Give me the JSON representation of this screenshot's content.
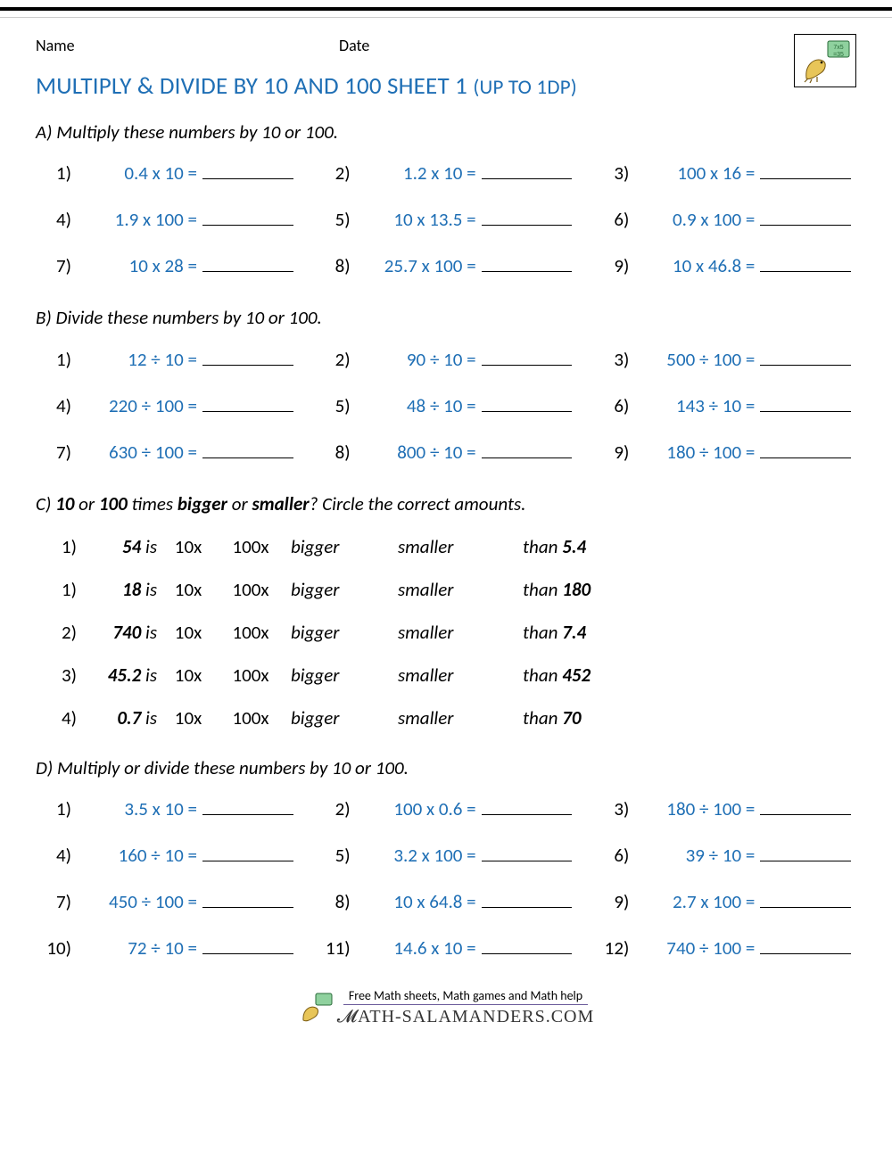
{
  "header": {
    "name_label": "Name",
    "date_label": "Date"
  },
  "title": {
    "main": "MULTIPLY & DIVIDE BY 10 AND 100 SHEET 1",
    "sub": "(UP TO 1DP)",
    "color": "#1F6FB5"
  },
  "sectionA": {
    "label_prefix": "A) ",
    "label_text": "Multiply these numbers by 10 or 100.",
    "items": [
      {
        "n": "1)",
        "expr": "0.4 x 10 ="
      },
      {
        "n": "2)",
        "expr": "1.2 x 10 ="
      },
      {
        "n": "3)",
        "expr": "100 x 16 ="
      },
      {
        "n": "4)",
        "expr": "1.9 x 100 ="
      },
      {
        "n": "5)",
        "expr": "10 x 13.5 ="
      },
      {
        "n": "6)",
        "expr": "0.9 x 100 ="
      },
      {
        "n": "7)",
        "expr": "10 x 28 ="
      },
      {
        "n": "8)",
        "expr": "25.7 x 100 ="
      },
      {
        "n": "9)",
        "expr": "10 x 46.8 ="
      }
    ]
  },
  "sectionB": {
    "label_prefix": "B) ",
    "label_text": "Divide these numbers by 10 or 100.",
    "items": [
      {
        "n": "1)",
        "expr": "12 ÷ 10 ="
      },
      {
        "n": "2)",
        "expr": "90 ÷ 10 ="
      },
      {
        "n": "3)",
        "expr": "500 ÷ 100 ="
      },
      {
        "n": "4)",
        "expr": "220 ÷ 100 ="
      },
      {
        "n": "5)",
        "expr": "48 ÷ 10 ="
      },
      {
        "n": "6)",
        "expr": "143 ÷ 10 ="
      },
      {
        "n": "7)",
        "expr": "630 ÷ 100 ="
      },
      {
        "n": "8)",
        "expr": "800 ÷ 10 ="
      },
      {
        "n": "9)",
        "expr": "180 ÷ 100 ="
      }
    ]
  },
  "sectionC": {
    "label_html_parts": [
      "C) ",
      "10",
      " or ",
      "100",
      " times ",
      "bigger",
      " or ",
      "smaller",
      "? Circle the correct amounts."
    ],
    "opt10": "10x",
    "opt100": "100x",
    "bigger": "bigger",
    "smaller": "smaller",
    "than": "than",
    "is": "is",
    "rows": [
      {
        "n": "1)",
        "a": "54",
        "b": "5.4"
      },
      {
        "n": "1)",
        "a": "18",
        "b": "180"
      },
      {
        "n": "2)",
        "a": "740",
        "b": "7.4"
      },
      {
        "n": "3)",
        "a": "45.2",
        "b": "452"
      },
      {
        "n": "4)",
        "a": "0.7",
        "b": "70"
      }
    ]
  },
  "sectionD": {
    "label_prefix": "D) ",
    "label_text": "Multiply or divide these numbers by 10 or 100.",
    "items": [
      {
        "n": "1)",
        "expr": "3.5 x 10 ="
      },
      {
        "n": "2)",
        "expr": "100 x 0.6 ="
      },
      {
        "n": "3)",
        "expr": "180 ÷ 100 ="
      },
      {
        "n": "4)",
        "expr": "160 ÷ 10 ="
      },
      {
        "n": "5)",
        "expr": "3.2 x 100 ="
      },
      {
        "n": "6)",
        "expr": "39 ÷ 10 ="
      },
      {
        "n": "7)",
        "expr": "450 ÷ 100 ="
      },
      {
        "n": "8)",
        "expr": "10 x 64.8 ="
      },
      {
        "n": "9)",
        "expr": "2.7 x 100 ="
      },
      {
        "n": "10)",
        "expr": "72 ÷ 10 ="
      },
      {
        "n": "11)",
        "expr": "14.6 x 10 ="
      },
      {
        "n": "12)",
        "expr": "740 ÷ 100 ="
      }
    ]
  },
  "footer": {
    "line1": "Free Math sheets, Math games and Math help",
    "site": "ATH-SALAMANDERS.COM"
  },
  "colors": {
    "heading": "#1F6FB5",
    "text": "#000000",
    "rule": "#000000"
  }
}
